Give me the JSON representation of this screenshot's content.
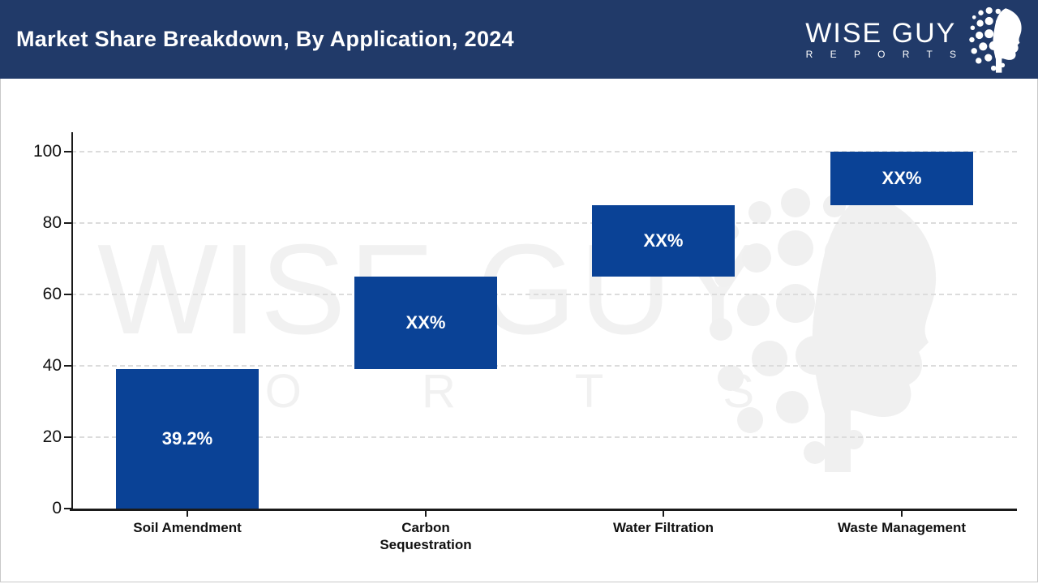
{
  "header": {
    "title": "Market Share Breakdown, By Application, 2024",
    "logo": {
      "line1": "WISE GUY",
      "line2": "R E P O R T S"
    }
  },
  "watermark": {
    "line1": "WISE GUY",
    "line2": "P O R T S"
  },
  "colors": {
    "header_bg": "#213a69",
    "bar": "#0a4296",
    "grid": "#dcdcdc",
    "axis": "#1a1a1a",
    "watermark": "#f0f0f0"
  },
  "chart_data": {
    "type": "bar",
    "variant": "floating-segment (waterfall-style market share)",
    "title": "Market Share Breakdown, By Application, 2024",
    "categories": [
      "Soil Amendment",
      "Carbon Sequestration",
      "Water Filtration",
      "Waste Management"
    ],
    "bars": [
      {
        "category": "Soil Amendment",
        "category_display": "Soil Amendment",
        "start": 0,
        "end": 39.2,
        "label": "39.2%"
      },
      {
        "category": "Carbon Sequestration",
        "category_display": "Carbon\nSequestration",
        "start": 39.2,
        "end": 65,
        "label": "XX%"
      },
      {
        "category": "Water Filtration",
        "category_display": "Water Filtration",
        "start": 65,
        "end": 85,
        "label": "XX%"
      },
      {
        "category": "Waste Management",
        "category_display": "Waste Management",
        "start": 85,
        "end": 100,
        "label": "XX%"
      }
    ],
    "xlabel": "",
    "ylabel": "",
    "ylim": [
      0,
      100
    ],
    "yticks": [
      0,
      20,
      40,
      60,
      80,
      100
    ],
    "grid": "horizontal-dashed",
    "legend": "none",
    "bar_color": "#0a4296",
    "value_label_color": "#ffffff"
  }
}
